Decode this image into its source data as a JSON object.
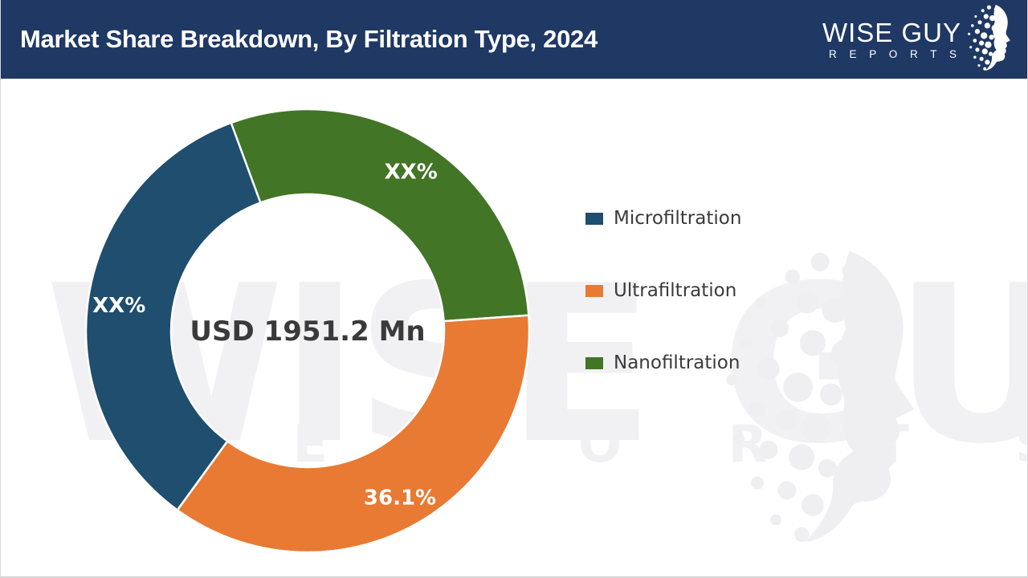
{
  "header": {
    "title": "Market Share Breakdown, By Filtration Type, 2024",
    "brand": {
      "name_line": "WISE GUY",
      "sub_line": "R E P O R T S"
    }
  },
  "watermark": {
    "line1": "WISE GUY",
    "line2": "R E P O R T S"
  },
  "chart_data": {
    "type": "pie",
    "subtype": "donut",
    "title": "Market Share Breakdown, By Filtration Type, 2024",
    "center_label": "USD 1951.2 Mn",
    "hole_ratio": 0.615,
    "start_angle_deg": 4,
    "direction": "counterclockwise",
    "segments": [
      {
        "name": "Nanofiltration",
        "display_label": "XX%",
        "pct": 29.5,
        "color": "#427526"
      },
      {
        "name": "Microfiltration",
        "display_label": "XX%",
        "pct": 34.4,
        "color": "#1F4E6E"
      },
      {
        "name": "Ultrafiltration",
        "display_label": "36.1%",
        "pct": 36.1,
        "color": "#E87A33"
      }
    ],
    "legend": {
      "position": "right",
      "items": [
        {
          "label": "Microfiltration",
          "color": "#1F4E6E"
        },
        {
          "label": "Ultrafiltration",
          "color": "#E87A33"
        },
        {
          "label": "Nanofiltration",
          "color": "#427526"
        }
      ]
    }
  },
  "colors": {
    "header_bg": "#1F3864",
    "title_text": "#FFFFFF",
    "text_dark": "#3A3A3A",
    "watermark": "#F1F1F4",
    "page_border": "#D6D6D6"
  }
}
